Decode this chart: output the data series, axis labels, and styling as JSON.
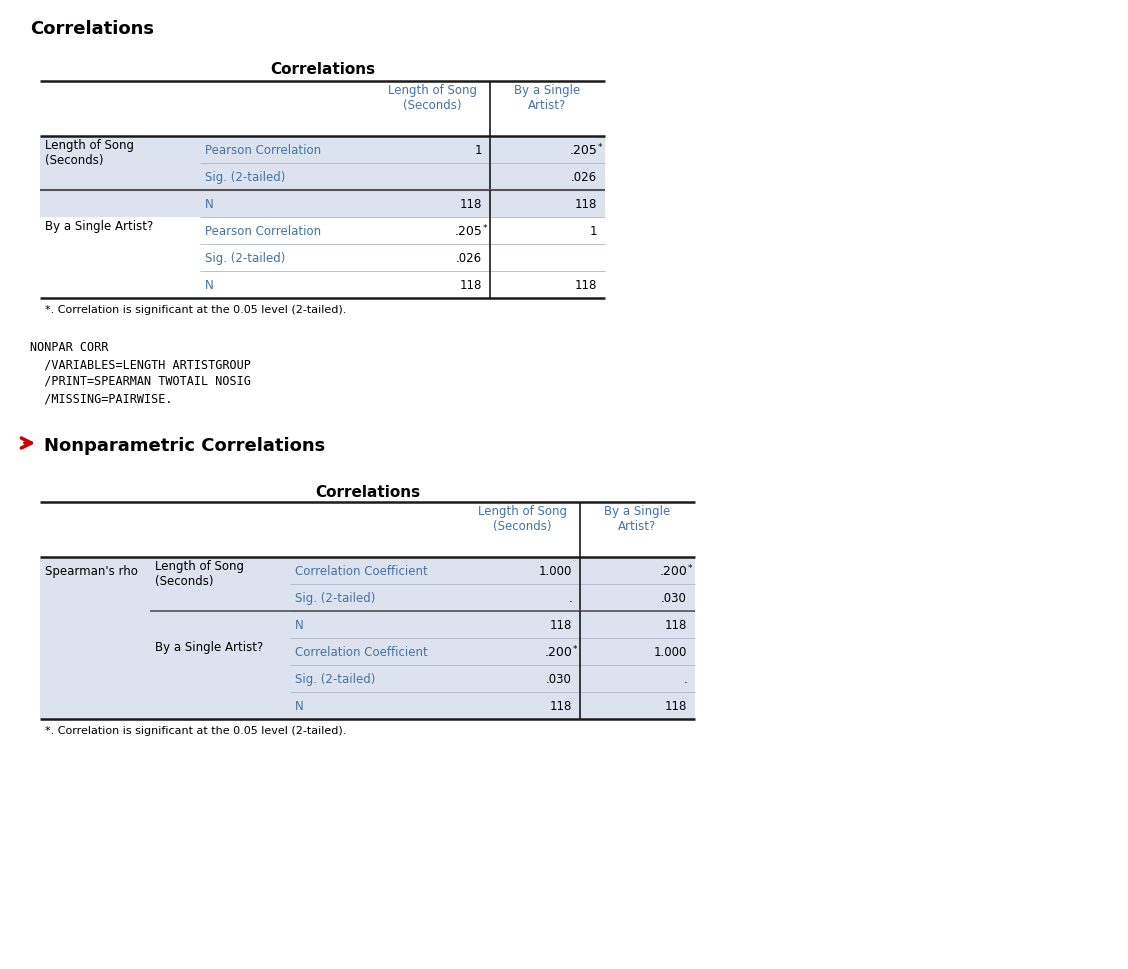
{
  "bg_color": "#ffffff",
  "title1": "Correlations",
  "table1_title": "Correlations",
  "table1_footnote": "*. Correlation is significant at the 0.05 level (2-tailed).",
  "code_lines": [
    "NONPAR CORR",
    "  /VARIABLES=LENGTH ARTISTGROUP",
    "  /PRINT=SPEARMAN TWOTAIL NOSIG",
    "  /MISSING=PAIRWISE."
  ],
  "title2": "Nonparametric Correlations",
  "table2_title": "Correlations",
  "table2_footnote": "*. Correlation is significant at the 0.05 level (2-tailed).",
  "header_text_color": "#4472a8",
  "row_label_color": "#4472a8",
  "alt_row_bg": "#dce3ee",
  "white_row_bg": "#ffffff",
  "table_border_color": "#1a1a1a",
  "inner_line_color": "#b0b8c8",
  "group_line_color": "#555555",
  "arrow_color": "#cc0000",
  "t1_rows": [
    [
      "Length of Song\n(Seconds)",
      "Pearson Correlation",
      "1",
      ".205*"
    ],
    [
      "",
      "Sig. (2-tailed)",
      "",
      ".026"
    ],
    [
      "",
      "N",
      "118",
      "118"
    ],
    [
      "By a Single Artist?",
      "Pearson Correlation",
      ".205*",
      "1"
    ],
    [
      "",
      "Sig. (2-tailed)",
      ".026",
      ""
    ],
    [
      "",
      "N",
      "118",
      "118"
    ]
  ],
  "t2_rows": [
    [
      "Spearman's rho",
      "Length of Song\n(Seconds)",
      "Correlation Coefficient",
      "1.000",
      ".200*"
    ],
    [
      "",
      "",
      "Sig. (2-tailed)",
      ".",
      ".030"
    ],
    [
      "",
      "",
      "N",
      "118",
      "118"
    ],
    [
      "",
      "By a Single Artist?",
      "Correlation Coefficient",
      ".200*",
      "1.000"
    ],
    [
      "",
      "",
      "Sig. (2-tailed)",
      ".030",
      "."
    ],
    [
      "",
      "",
      "N",
      "118",
      "118"
    ]
  ]
}
